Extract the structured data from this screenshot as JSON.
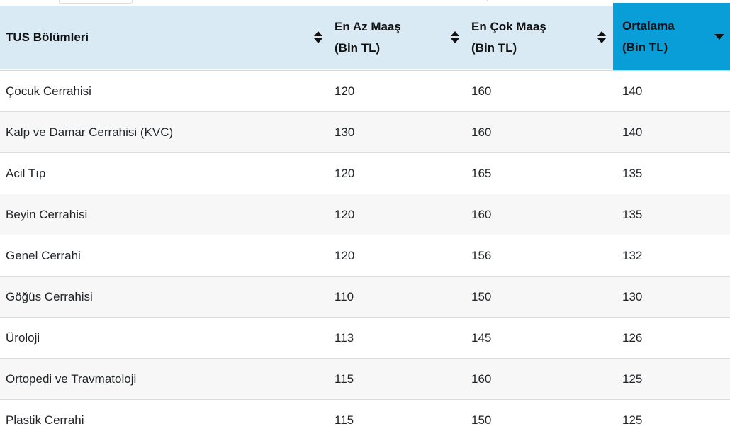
{
  "header": {
    "dept": {
      "label": "TUS Bölümleri"
    },
    "min": {
      "line1": "En Az Maaş",
      "line2": "(Bin TL)"
    },
    "max": {
      "line1": "En Çok Maaş",
      "line2": "(Bin TL)"
    },
    "avg": {
      "line1": "Ortalama",
      "line2": "(Bin TL)"
    }
  },
  "sort_state": {
    "sorted_column": "Ortalama (Bin TL)",
    "direction": "desc"
  },
  "icons": {
    "sortable_columns": "sort-updown-icon",
    "sorted_column": "sort-desc-icon"
  },
  "colors": {
    "header_bg": "#d9eaf5",
    "sorted_header_bg": "#0a9ed9",
    "row_bg": "#ffffff",
    "row_alt_bg": "#f7f7f7",
    "divider": "#dcdcdc",
    "text": "#212529",
    "header_text": "#111111"
  },
  "chart_data": {
    "type": "table",
    "title": "",
    "columns": [
      "TUS Bölümleri",
      "En Az Maaş (Bin TL)",
      "En Çok Maaş (Bin TL)",
      "Ortalama (Bin TL)"
    ],
    "rows": [
      [
        "Çocuk Cerrahisi",
        120,
        160,
        140
      ],
      [
        "Kalp ve Damar Cerrahisi (KVC)",
        130,
        160,
        140
      ],
      [
        "Acil Tıp",
        120,
        165,
        135
      ],
      [
        "Beyin Cerrahisi",
        120,
        160,
        135
      ],
      [
        "Genel Cerrahi",
        120,
        156,
        132
      ],
      [
        "Göğüs Cerrahisi",
        110,
        150,
        130
      ],
      [
        "Üroloji",
        113,
        145,
        126
      ],
      [
        "Ortopedi ve Travmatoloji",
        115,
        160,
        125
      ],
      [
        "Plastik Cerrahi",
        115,
        150,
        125
      ]
    ],
    "layout_hints": {
      "striped_rows": true,
      "sorted_by": "Ortalama (Bin TL)",
      "sort_direction": "desc",
      "values_unit": "Bin TL"
    }
  }
}
